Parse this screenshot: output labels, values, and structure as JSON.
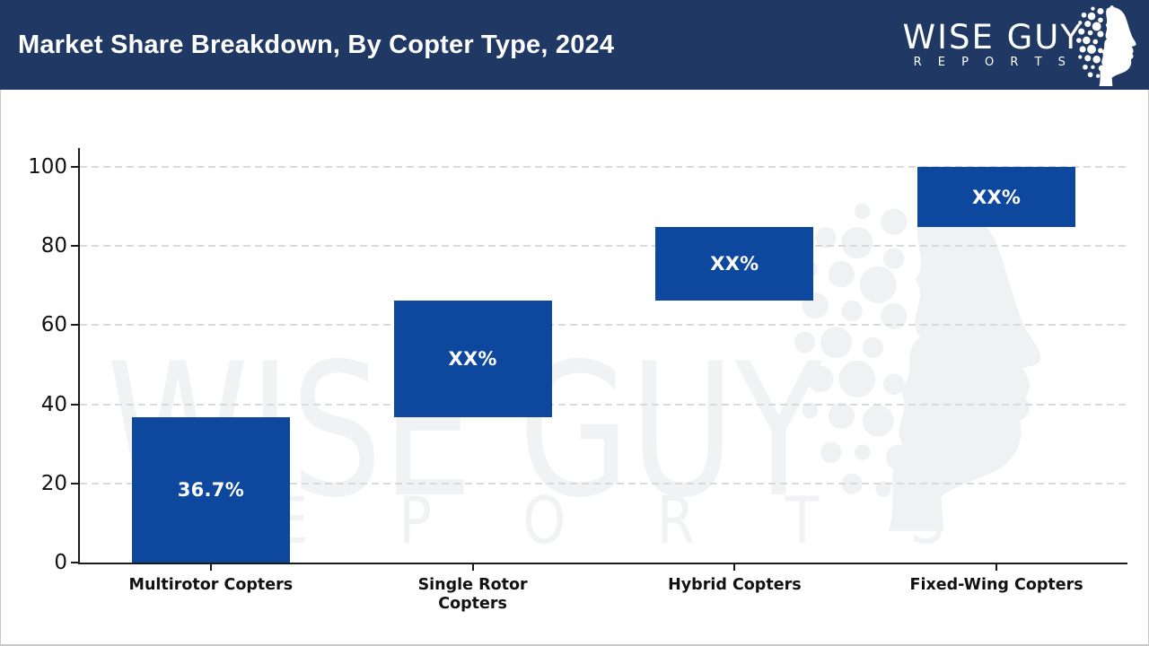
{
  "header": {
    "title": "Market Share Breakdown, By Copter Type, 2024",
    "logo_line1": "WISE GUY",
    "logo_line2": "R E P O R T S"
  },
  "watermark": {
    "line1": "WISE GUY",
    "line2": "R E P O R T S"
  },
  "colors": {
    "header_bg": "#203864",
    "bar": "#0d479e",
    "bar_label": "#ffffff",
    "watermark": "#f1f2f4",
    "grid": "#dadada",
    "axis": "#1a1a1a"
  },
  "chart_data": {
    "type": "bar",
    "subtype": "waterfall-stacked",
    "title": "Market Share Breakdown, By Copter Type, 2024",
    "categories": [
      "Multirotor Copters",
      "Single Rotor\nCopters",
      "Hybrid Copters",
      "Fixed-Wing Copters"
    ],
    "segments": [
      {
        "category": "Multirotor Copters",
        "start": 0,
        "end": 36.7,
        "label": "36.7%"
      },
      {
        "category": "Single Rotor Copters",
        "start": 36.7,
        "end": 66.3,
        "label": "XX%"
      },
      {
        "category": "Hybrid Copters",
        "start": 66.3,
        "end": 84.9,
        "label": "XX%"
      },
      {
        "category": "Fixed-Wing Copters",
        "start": 84.9,
        "end": 99.9,
        "label": "XX%"
      }
    ],
    "ylim": [
      0,
      105
    ],
    "yticks": [
      0,
      20,
      40,
      60,
      80,
      100
    ],
    "xlabel": "",
    "ylabel": "",
    "grid": "horizontal-dashed",
    "legend": "none",
    "bar_color": "#0d479e",
    "label_color": "#ffffff"
  }
}
